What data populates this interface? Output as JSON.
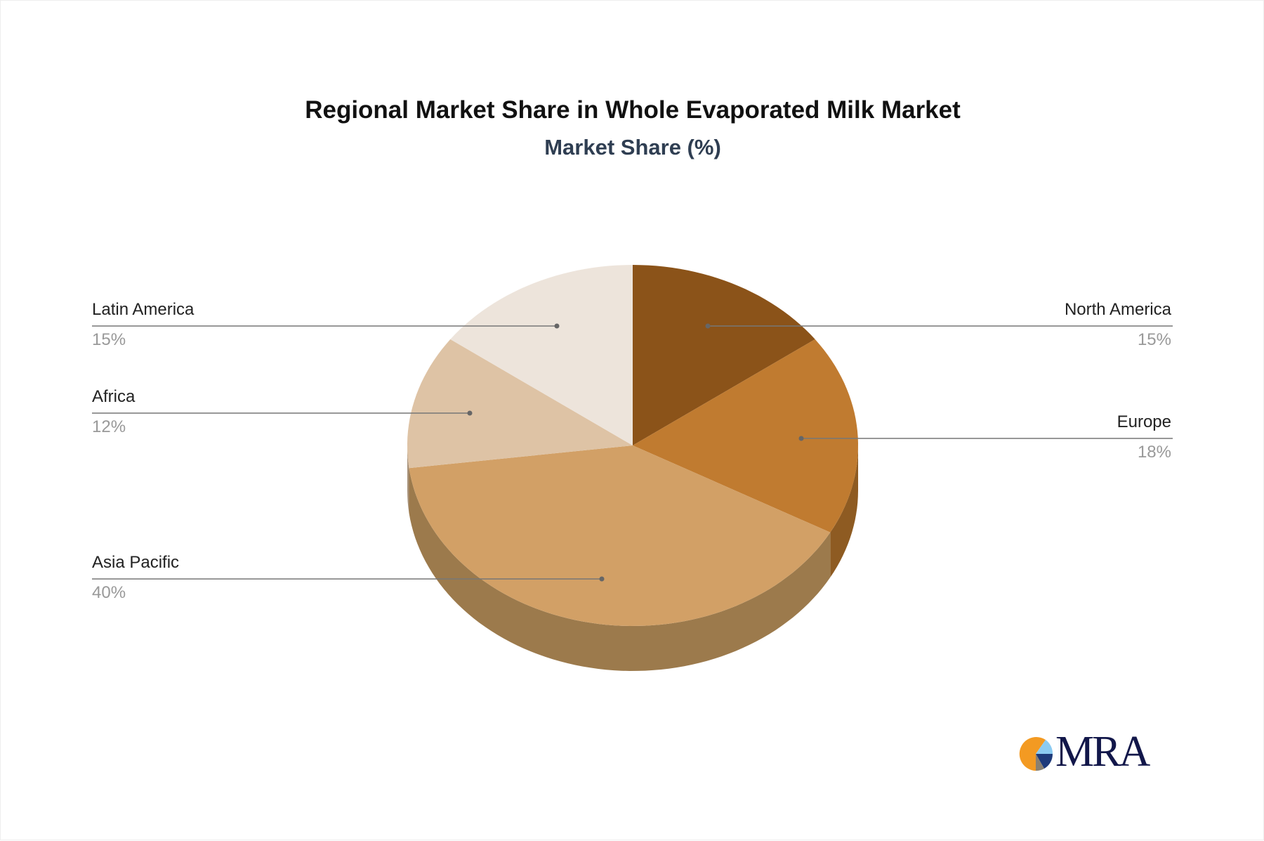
{
  "chart_data": {
    "type": "pie",
    "title": "Regional Market Share in Whole Evaporated Milk Market",
    "subtitle": "Market Share (%)",
    "slices": [
      {
        "label": "North America",
        "value": 15,
        "pct_label": "15%",
        "color": "#8B5319",
        "side_color": "#6E4214"
      },
      {
        "label": "Europe",
        "value": 18,
        "pct_label": "18%",
        "color": "#C07B30",
        "side_color": "#8E5B22"
      },
      {
        "label": "Asia Pacific",
        "value": 40,
        "pct_label": "40%",
        "color": "#D2A066",
        "side_color": "#9C7A4C"
      },
      {
        "label": "Africa",
        "value": 12,
        "pct_label": "12%",
        "color": "#DEC3A5",
        "side_color": "#A8927A"
      },
      {
        "label": "Latin America",
        "value": 15,
        "pct_label": "15%",
        "color": "#EDE4DB",
        "side_color": "#B5ACA3"
      }
    ],
    "style": "3d-pie"
  },
  "logo": {
    "text": "MRA"
  }
}
